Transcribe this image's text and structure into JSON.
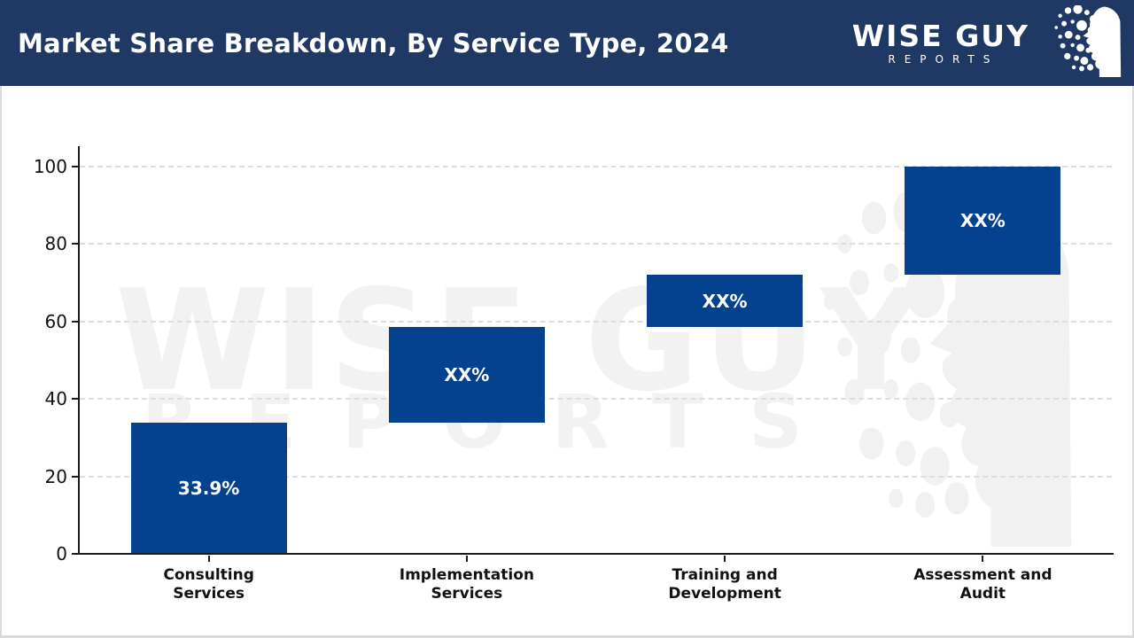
{
  "header": {
    "title": "Market Share Breakdown, By Service Type, 2024",
    "logo": {
      "line1": "WISE GUY",
      "line2": "REPORTS"
    }
  },
  "watermark": {
    "line1": "WISE GUY",
    "line2": "REPORTS"
  },
  "colors": {
    "header_bg": "#1F3864",
    "bar_fill": "#04428F",
    "bar_label_text": "#FFFFFF",
    "gridline": "#DDDDDD",
    "axis": "#1A1A1A",
    "watermark": "#F2F2F2",
    "sheet_border": "#D9D9D9"
  },
  "chart_data": {
    "type": "bar",
    "subtype": "waterfall",
    "title": "Market Share Breakdown, By Service Type, 2024",
    "xlabel": "",
    "ylabel": "",
    "ylim": [
      0,
      100
    ],
    "y_ticks": [
      0,
      20,
      40,
      60,
      80,
      100
    ],
    "grid": "horizontal-dashed",
    "legend": "none",
    "categories": [
      "Consulting Services",
      "Implementation Services",
      "Training and Development",
      "Assessment and Audit"
    ],
    "segments": [
      {
        "name": "Consulting Services",
        "name_lines": [
          "Consulting",
          "Services"
        ],
        "start": 0,
        "end": 33.9,
        "value_label": "33.9%"
      },
      {
        "name": "Implementation Services",
        "name_lines": [
          "Implementation",
          "Services"
        ],
        "start": 33.9,
        "end": 58.5,
        "value_label": "XX%"
      },
      {
        "name": "Training and Development",
        "name_lines": [
          "Training and",
          "Development"
        ],
        "start": 58.5,
        "end": 72.0,
        "value_label": "XX%"
      },
      {
        "name": "Assessment and Audit",
        "name_lines": [
          "Assessment and",
          "Audit"
        ],
        "start": 72.0,
        "end": 100.0,
        "value_label": "XX%"
      }
    ]
  }
}
